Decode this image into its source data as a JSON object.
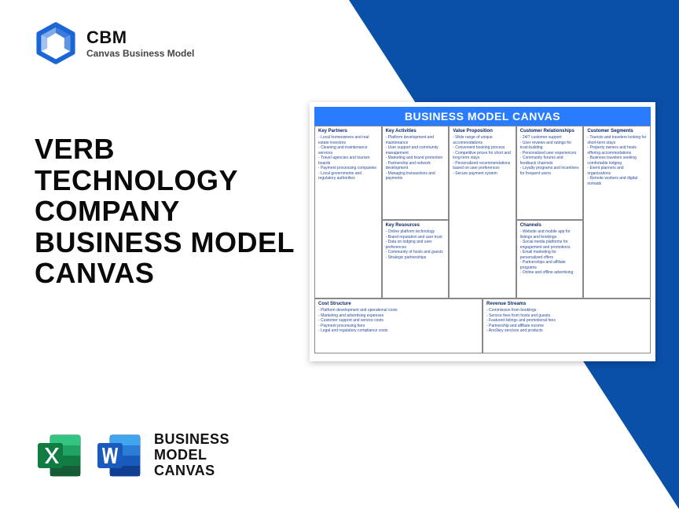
{
  "colors": {
    "brand_blue": "#1a66d6",
    "header_blue": "#2a7cff",
    "triangle": "#0a4fa8",
    "canvas_text": "#2a4a9c",
    "cell_title": "#0e2a66",
    "excel_dark": "#185c37",
    "excel_light": "#21a366",
    "word_dark": "#103f91",
    "word_light": "#2b7cd3"
  },
  "logo": {
    "brand": "CBM",
    "sub": "Canvas Business Model"
  },
  "title": {
    "l1": "VERB",
    "l2": "TECHNOLOGY",
    "l3": "COMPANY",
    "l4": "BUSINESS MODEL",
    "l5": "CANVAS"
  },
  "footer": {
    "l1": "BUSINESS",
    "l2": "MODEL",
    "l3": "CANVAS"
  },
  "canvas": {
    "header": "BUSINESS MODEL CANVAS",
    "kp": {
      "title": "Key Partners",
      "items": [
        "Local homeowners and real estate investors",
        "Cleaning and maintenance services",
        "Travel agencies and tourism boards",
        "Payment processing companies",
        "Local governments and regulatory authorities"
      ]
    },
    "ka": {
      "title": "Key Activities",
      "items": [
        "Platform development and maintenance",
        "User support and community management",
        "Marketing and brand promotion",
        "Partnership and network development",
        "Managing transactions and payments"
      ]
    },
    "kr": {
      "title": "Key Resources",
      "items": [
        "Online platform technology",
        "Brand reputation and user trust",
        "Data on lodging and user preferences",
        "Community of hosts and guests",
        "Strategic partnerships"
      ]
    },
    "vp": {
      "title": "Value Proposition",
      "items": [
        "Wide range of unique accommodations",
        "Convenient booking process",
        "Competitive prices for short and long-term stays",
        "Personalized recommendations based on user preferences",
        "Secure payment system"
      ]
    },
    "cr": {
      "title": "Customer Relationships",
      "items": [
        "24/7 customer support",
        "User reviews and ratings for trust-building",
        "Personalized user experiences",
        "Community forums and feedback channels",
        "Loyalty programs and incentives for frequent users"
      ]
    },
    "ch": {
      "title": "Channels",
      "items": [
        "Website and mobile app for listings and bookings",
        "Social media platforms for engagement and promotions",
        "Email marketing for personalized offers",
        "Partnerships and affiliate programs",
        "Online and offline advertising"
      ]
    },
    "cs": {
      "title": "Customer Segments",
      "items": [
        "Tourists and travelers looking for short-term stays",
        "Property owners and hosts offering accommodations",
        "Business travelers seeking comfortable lodging",
        "Event planners and organizations",
        "Remote workers and digital nomads"
      ]
    },
    "cost": {
      "title": "Cost Structure",
      "items": [
        "Platform development and operational costs",
        "Marketing and advertising expenses",
        "Customer support and service costs",
        "Payment processing fees",
        "Legal and regulatory compliance costs"
      ]
    },
    "rev": {
      "title": "Revenue Streams",
      "items": [
        "Commission from bookings",
        "Service fees from hosts and guests",
        "Featured listings and promotional fees",
        "Partnership and affiliate income",
        "Ancillary services and products"
      ]
    }
  }
}
